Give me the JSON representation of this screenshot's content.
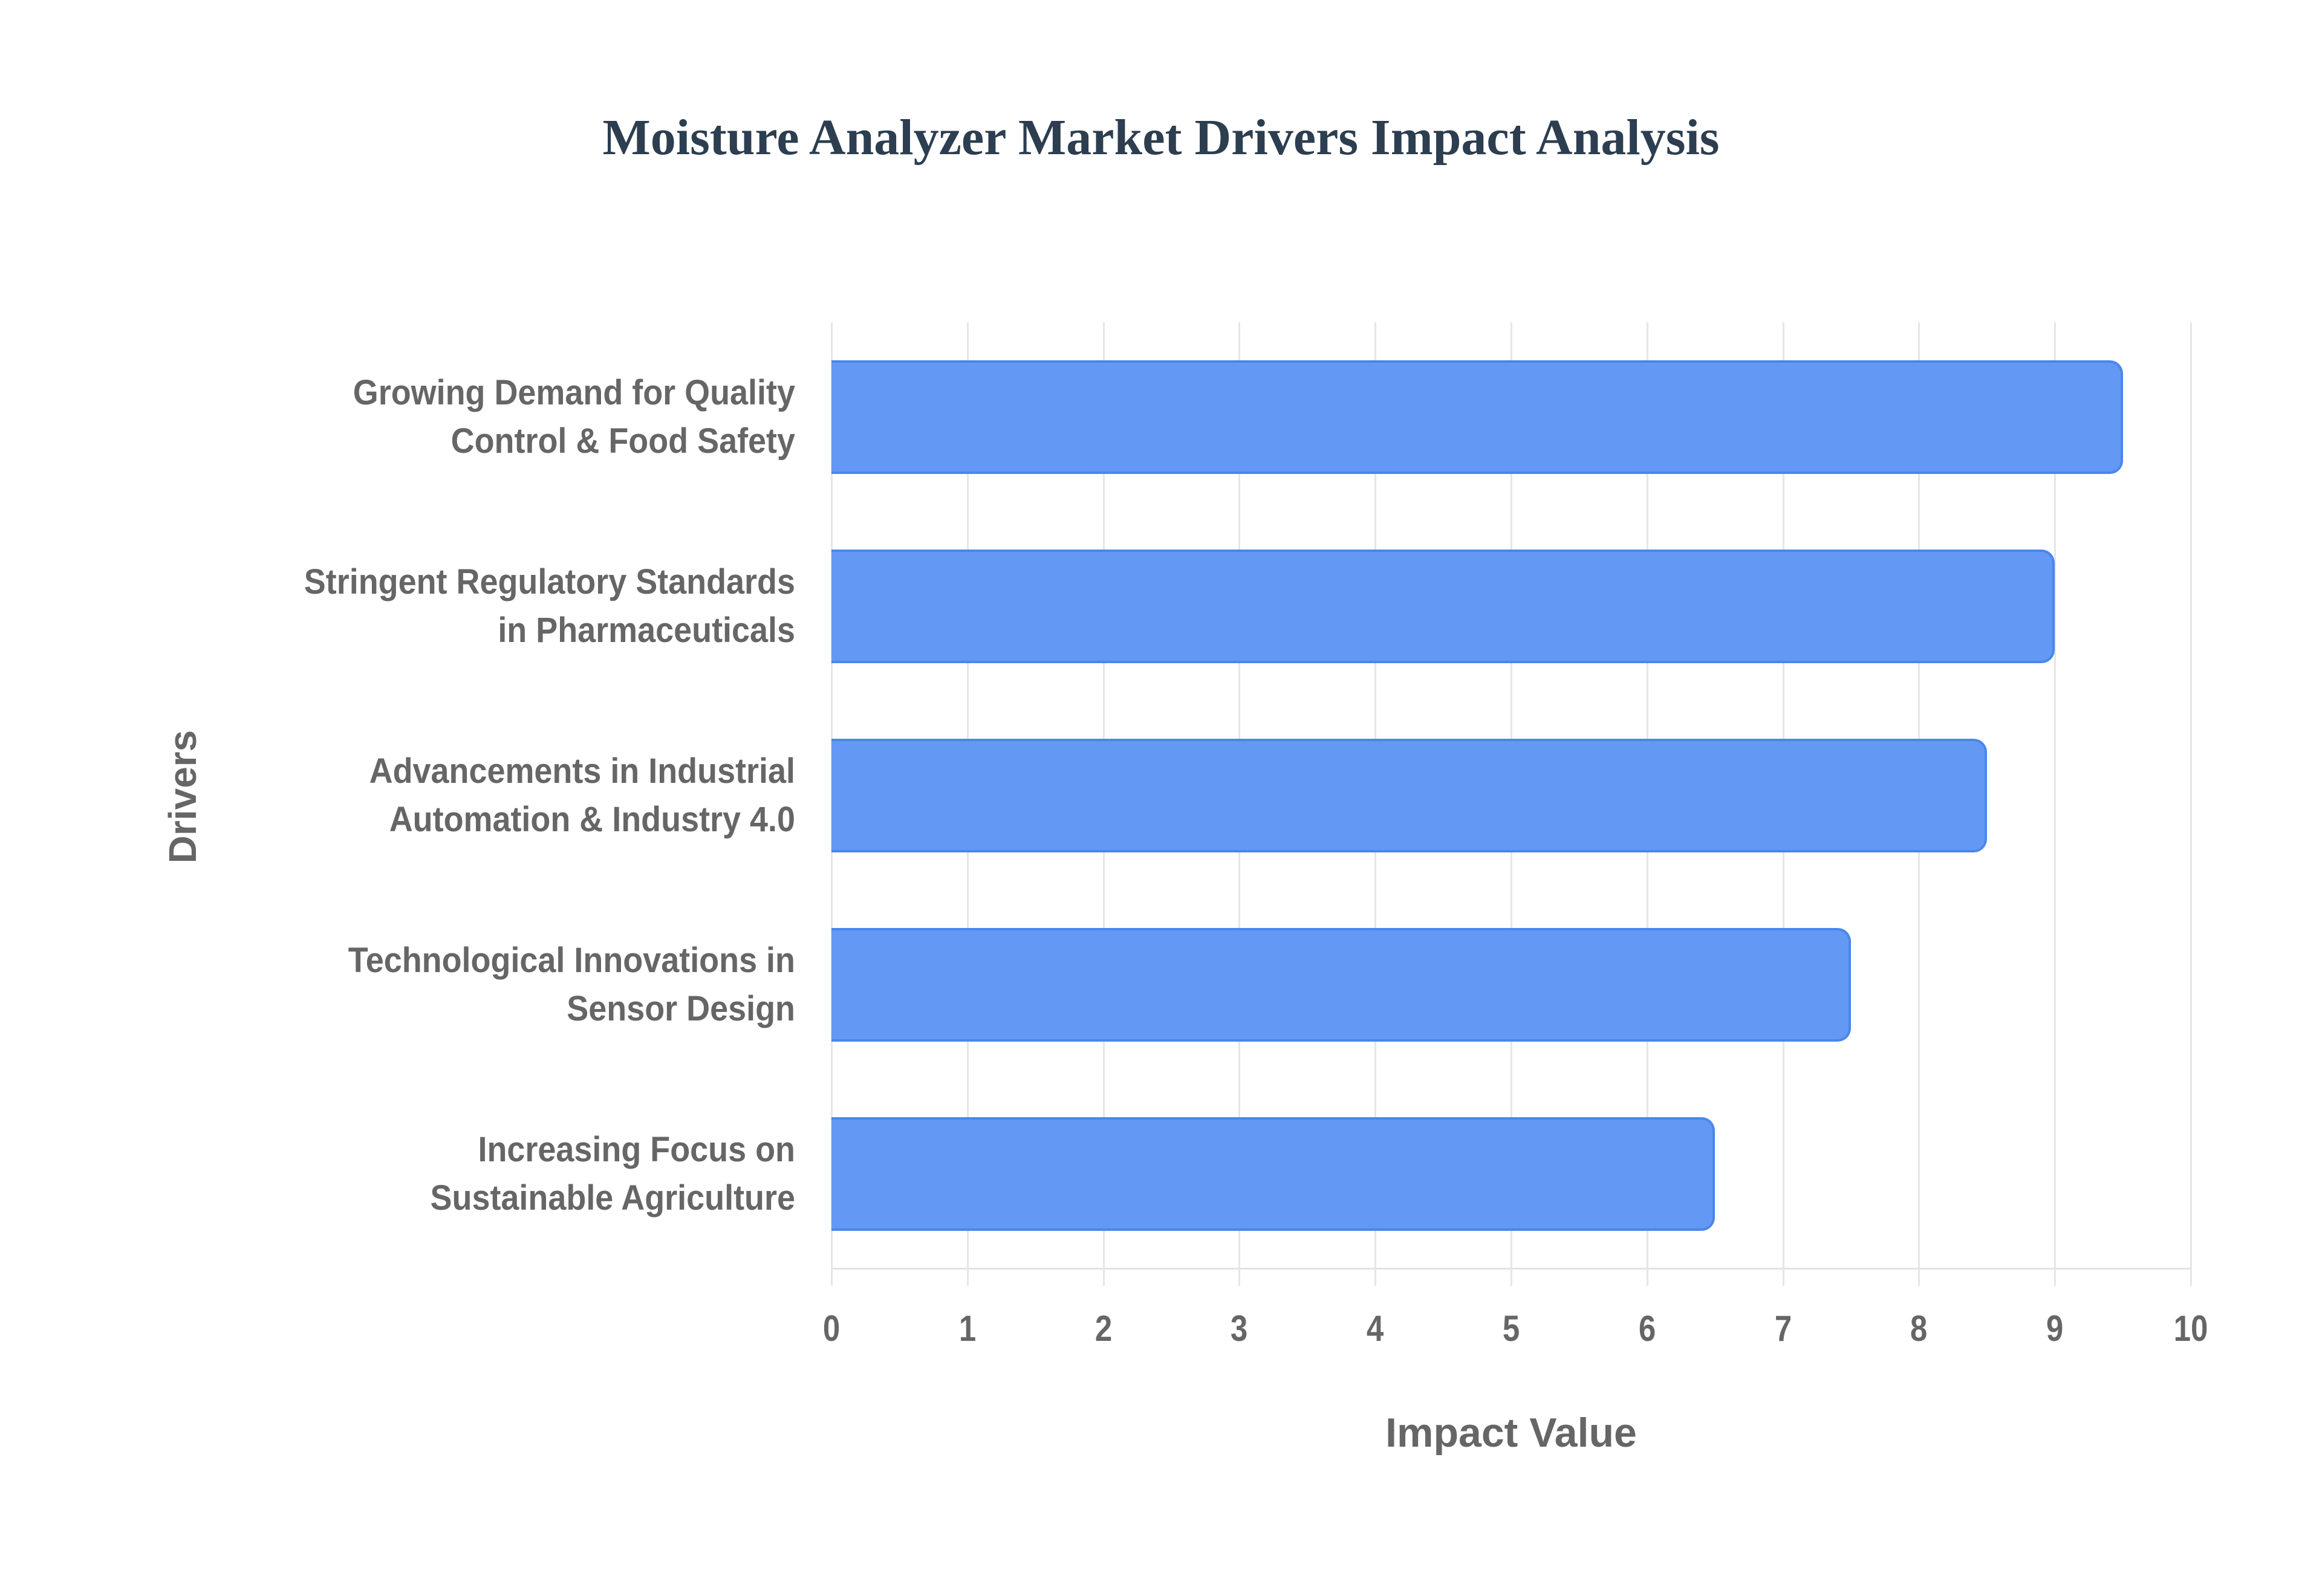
{
  "title": "Moisture Analyzer Market Drivers Impact Analysis",
  "axes": {
    "x_title": "Impact Value",
    "y_title": "Drivers",
    "x_ticks": [
      "0",
      "1",
      "2",
      "3",
      "4",
      "5",
      "6",
      "7",
      "8",
      "9",
      "10"
    ]
  },
  "drivers": [
    {
      "line1": "Growing Demand for Quality",
      "line2": "Control & Food Safety",
      "value": 9.5
    },
    {
      "line1": "Stringent Regulatory Standards",
      "line2": "in Pharmaceuticals",
      "value": 9.0
    },
    {
      "line1": "Advancements in Industrial",
      "line2": "Automation & Industry 4.0",
      "value": 8.5
    },
    {
      "line1": "Technological Innovations in",
      "line2": "Sensor Design",
      "value": 7.5
    },
    {
      "line1": "Increasing Focus on",
      "line2": "Sustainable Agriculture",
      "value": 6.5
    }
  ],
  "colors": {
    "bar_fill": "#6399f4",
    "bar_border": "#4a86ec",
    "title": "#2c3e50",
    "label": "#666666",
    "grid": "#e6e6e6"
  },
  "chart_data": {
    "type": "bar",
    "orientation": "horizontal",
    "title": "Moisture Analyzer Market Drivers Impact Analysis",
    "categories": [
      "Growing Demand for Quality Control & Food Safety",
      "Stringent Regulatory Standards in Pharmaceuticals",
      "Advancements in Industrial Automation & Industry 4.0",
      "Technological Innovations in Sensor Design",
      "Increasing Focus on Sustainable Agriculture"
    ],
    "values": [
      9.5,
      9.0,
      8.5,
      7.5,
      6.5
    ],
    "xlabel": "Impact Value",
    "ylabel": "Drivers",
    "xlim": [
      0,
      10
    ],
    "x_ticks": [
      0,
      1,
      2,
      3,
      4,
      5,
      6,
      7,
      8,
      9,
      10
    ],
    "grid": {
      "vertical": true,
      "horizontal": false
    },
    "legend": null
  }
}
